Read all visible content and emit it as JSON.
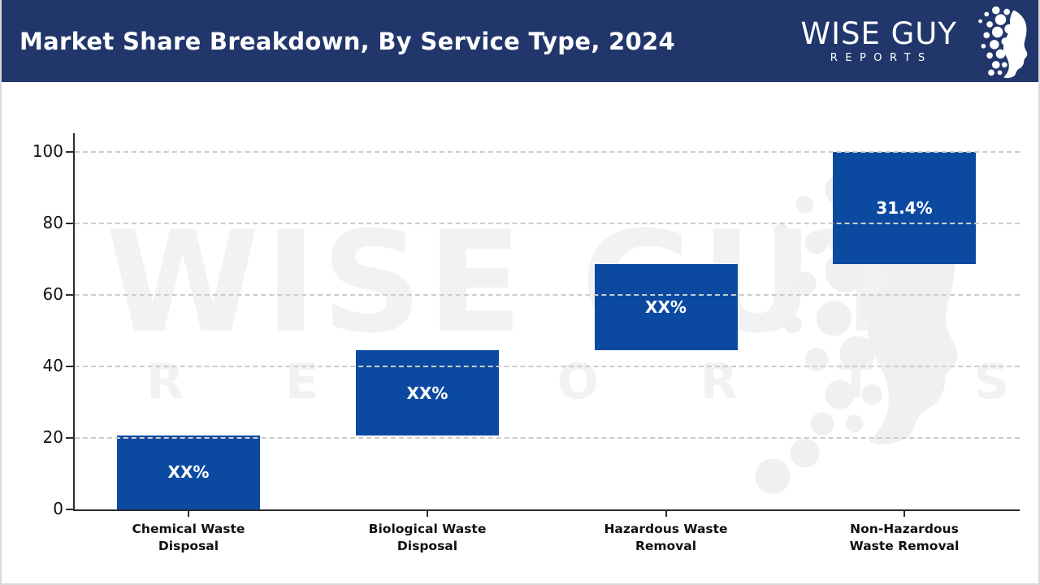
{
  "header": {
    "title": "Market Share Breakdown, By Service Type, 2024",
    "logo": {
      "line1": "WISE GUY",
      "line2": "REPORTS",
      "face_icon": "dotted-face-profile"
    },
    "bg_color": "#21376b"
  },
  "watermark": {
    "line1": "WISE GUY",
    "line2": "R E P O R T S"
  },
  "chart_data": {
    "type": "bar",
    "subtype": "waterfall-floating-segments",
    "title": "Market Share Breakdown, By Service Type, 2024",
    "categories": [
      "Chemical Waste\nDisposal",
      "Biological Waste\nDisposal",
      "Hazardous Waste\nRemoval",
      "Non-Hazardous\nWaste Removal"
    ],
    "segments": [
      {
        "category": "Chemical Waste Disposal",
        "start": 0,
        "end": 20.7,
        "label": "XX%"
      },
      {
        "category": "Biological Waste Disposal",
        "start": 20.7,
        "end": 44.5,
        "label": "XX%"
      },
      {
        "category": "Hazardous Waste Removal",
        "start": 44.5,
        "end": 68.6,
        "label": "XX%"
      },
      {
        "category": "Non-Hazardous Waste Removal",
        "start": 68.6,
        "end": 100,
        "label": "31.4%"
      }
    ],
    "ylim": [
      0,
      100
    ],
    "yticks": [
      0,
      20,
      40,
      60,
      80,
      100
    ],
    "xlabel": "",
    "ylabel": "",
    "grid": "horizontal-dashed, drawn above bars",
    "legend": "none",
    "bar_color": "#0c4aa2",
    "bar_label_color": "#ffffff",
    "axis_color": "#2a2a2a",
    "grid_color": "#cccccc"
  }
}
